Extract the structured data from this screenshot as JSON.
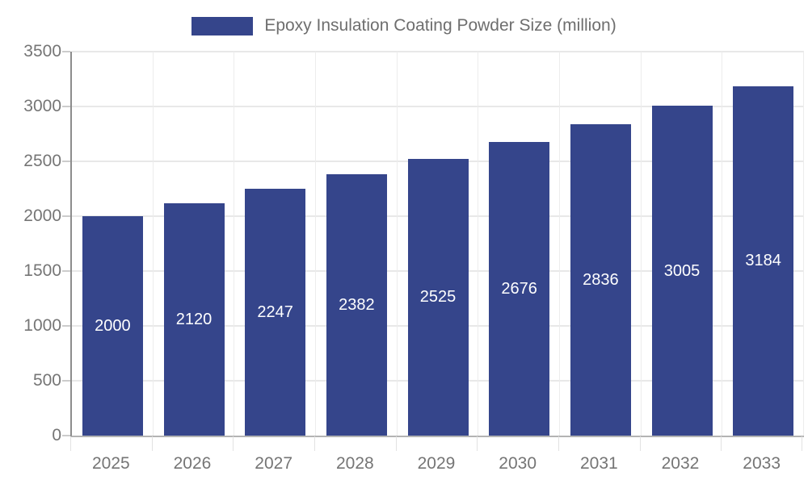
{
  "chart_data": {
    "type": "bar",
    "title": "Epoxy Insulation Coating Powder Size (million)",
    "categories": [
      "2025",
      "2026",
      "2027",
      "2028",
      "2029",
      "2030",
      "2031",
      "2032",
      "2033"
    ],
    "values": [
      2000,
      2120,
      2247,
      2382,
      2525,
      2676,
      2836,
      3005,
      3184
    ],
    "xlabel": "",
    "ylabel": "",
    "ylim": [
      0,
      3500
    ],
    "ytick_step": 500,
    "grid": true,
    "legend_position": "top",
    "value_labels": "inside-center",
    "colors": {
      "bar": "#35458b",
      "value_label": "#ffffff",
      "axis_label": "#757575",
      "legend_text": "#6e6e6e",
      "grid_h": "#e8e8e8",
      "grid_v": "#ececec",
      "y_axis_line": "#8c8c8c",
      "x_axis_line": "#b3b3b3"
    }
  }
}
